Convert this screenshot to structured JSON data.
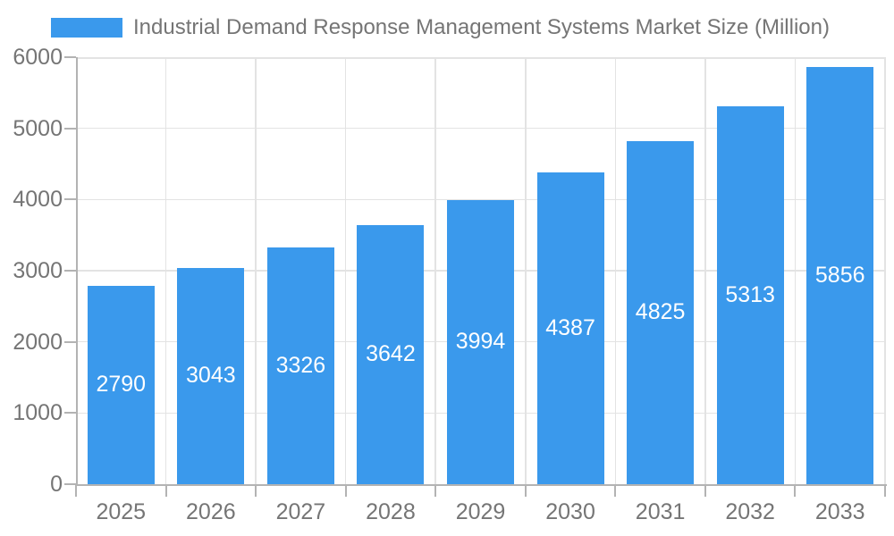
{
  "legend": {
    "label": "Industrial Demand Response Management Systems Market Size (Million)"
  },
  "chart_data": {
    "type": "bar",
    "title": "Industrial Demand Response Management Systems Market Size (Million)",
    "categories": [
      "2025",
      "2026",
      "2027",
      "2028",
      "2029",
      "2030",
      "2031",
      "2032",
      "2033"
    ],
    "values": [
      2790,
      3043,
      3326,
      3642,
      3994,
      4387,
      4825,
      5313,
      5856
    ],
    "xlabel": "",
    "ylabel": "",
    "ylim": [
      0,
      6000
    ],
    "yticks": [
      0,
      1000,
      2000,
      3000,
      4000,
      5000,
      6000
    ],
    "grid": true,
    "legend_position": "top-left",
    "bar_value_labels": "inside-center",
    "colors": {
      "bar": "#3A99EC",
      "bar_label": "#FFFFFF",
      "axis_text": "#757575",
      "axis_line": "#B3B3B3",
      "gridline": "#E3E3E3",
      "background": "#FFFFFF"
    }
  }
}
